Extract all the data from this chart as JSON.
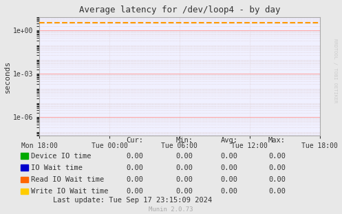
{
  "title": "Average latency for /dev/loop4 - by day",
  "ylabel": "seconds",
  "fig_background": "#e8e8e8",
  "plot_background": "#f0f0ff",
  "grid_major_color": "#ffaaaa",
  "grid_minor_color": "#ddcccc",
  "xgrid_color": "#ddcccc",
  "ylim_min": 5e-08,
  "ylim_max": 8.0,
  "yticks": [
    1e-06,
    0.001,
    1.0
  ],
  "ytick_labels": [
    "1e-06",
    "1e-03",
    "1e+00"
  ],
  "xlabel_ticks_pos": [
    0,
    6,
    12,
    18,
    24
  ],
  "xlabel_ticks": [
    "Mon 18:00",
    "Tue 00:00",
    "Tue 06:00",
    "Tue 12:00",
    "Tue 18:00"
  ],
  "dashed_line_value": 3.2,
  "dashed_line_color": "#ff9900",
  "watermark": "RRDTOOL / TOBI OETIKER",
  "footer": "Munin 2.0.73",
  "last_update": "Last update: Tue Sep 17 23:15:09 2024",
  "legend_entries": [
    {
      "label": "Device IO time",
      "color": "#00aa00"
    },
    {
      "label": "IO Wait time",
      "color": "#0000cc"
    },
    {
      "label": "Read IO Wait time",
      "color": "#ff6600"
    },
    {
      "label": "Write IO Wait time",
      "color": "#ffcc00"
    }
  ],
  "table_headers": [
    "Cur:",
    "Min:",
    "Avg:",
    "Max:"
  ],
  "table_values": [
    [
      "0.00",
      "0.00",
      "0.00",
      "0.00"
    ],
    [
      "0.00",
      "0.00",
      "0.00",
      "0.00"
    ],
    [
      "0.00",
      "0.00",
      "0.00",
      "0.00"
    ],
    [
      "0.00",
      "0.00",
      "0.00",
      "0.00"
    ]
  ],
  "axis_color": "#aaaaaa",
  "text_color": "#333333",
  "footer_color": "#aaaaaa",
  "watermark_color": "#cccccc"
}
